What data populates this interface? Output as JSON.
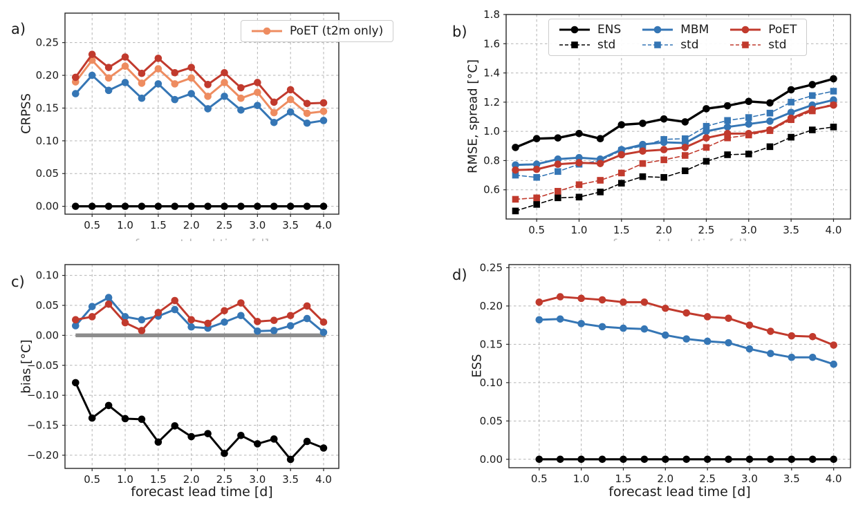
{
  "figure": {
    "background": "#ffffff",
    "grid_color": "#b3b3b3",
    "border_color": "#262626",
    "tick_color": "#262626"
  },
  "colors": {
    "ens": "#000000",
    "mbm": "#3576b5",
    "poet": "#c13a2d",
    "poet_t2m": "#ee8c60",
    "zero_line": "#8c8c8c"
  },
  "chart_data": [
    {
      "id": "a",
      "type": "line",
      "panel": "a)",
      "ylabel": "CRPSS",
      "xlabel_cropped": "forecast lead time [d]",
      "xlim": [
        0.09,
        4.23
      ],
      "ylim": [
        -0.012,
        0.295
      ],
      "grid": true,
      "xticks": [
        0.5,
        1.0,
        1.5,
        2.0,
        2.5,
        3.0,
        3.5,
        4.0
      ],
      "xtick_labels": [
        "0.5",
        "1.0",
        "1.5",
        "2.0",
        "2.5",
        "3.0",
        "3.5",
        "4.0"
      ],
      "yticks": [
        0.0,
        0.05,
        0.1,
        0.15,
        0.2,
        0.25
      ],
      "ytick_labels": [
        "0.00",
        "0.05",
        "0.10",
        "0.15",
        "0.20",
        "0.25"
      ],
      "x": [
        0.25,
        0.5,
        0.75,
        1.0,
        1.25,
        1.5,
        1.75,
        2.0,
        2.25,
        2.5,
        2.75,
        3.0,
        3.25,
        3.5,
        3.75,
        4.0
      ],
      "series": [
        {
          "name": "ENS",
          "color": "#000000",
          "marker": "circle",
          "dash": false,
          "width": 3.2,
          "values": [
            0,
            0,
            0,
            0,
            0,
            0,
            0,
            0,
            0,
            0,
            0,
            0,
            0,
            0,
            0,
            0
          ]
        },
        {
          "name": "MBM",
          "color": "#3576b5",
          "marker": "circle",
          "dash": false,
          "width": 3.0,
          "values": [
            0.172,
            0.2,
            0.177,
            0.189,
            0.165,
            0.187,
            0.163,
            0.172,
            0.149,
            0.168,
            0.147,
            0.154,
            0.128,
            0.144,
            0.127,
            0.131
          ]
        },
        {
          "name": "PoET (t2m only)",
          "color": "#ee8c60",
          "marker": "circle",
          "dash": false,
          "width": 3.0,
          "values": [
            0.19,
            0.223,
            0.196,
            0.214,
            0.188,
            0.21,
            0.187,
            0.196,
            0.168,
            0.189,
            0.165,
            0.174,
            0.143,
            0.163,
            0.142,
            0.145
          ]
        },
        {
          "name": "PoET",
          "color": "#c13a2d",
          "marker": "circle",
          "dash": false,
          "width": 3.0,
          "values": [
            0.197,
            0.232,
            0.212,
            0.228,
            0.203,
            0.226,
            0.204,
            0.212,
            0.186,
            0.204,
            0.181,
            0.189,
            0.159,
            0.178,
            0.157,
            0.158
          ]
        }
      ],
      "legend": {
        "entries": [
          {
            "label": "PoET (t2m only)",
            "color": "#ee8c60",
            "marker": "circle",
            "dash": false
          }
        ]
      }
    },
    {
      "id": "b",
      "type": "line",
      "panel": "b)",
      "ylabel": "RMSE, spread [°C]",
      "xlabel_cropped": "forecast lead time [d]",
      "xlim": [
        0.14,
        4.2
      ],
      "ylim": [
        0.4,
        1.8
      ],
      "grid": true,
      "xticks": [
        0.5,
        1.0,
        1.5,
        2.0,
        2.5,
        3.0,
        3.5,
        4.0
      ],
      "xtick_labels": [
        "0.5",
        "1.0",
        "1.5",
        "2.0",
        "2.5",
        "3.0",
        "3.5",
        "4.0"
      ],
      "yticks": [
        0.6,
        0.8,
        1.0,
        1.2,
        1.4,
        1.6,
        1.8
      ],
      "ytick_labels": [
        "0.6",
        "0.8",
        "1.0",
        "1.2",
        "1.4",
        "1.6",
        "1.8"
      ],
      "x": [
        0.25,
        0.5,
        0.75,
        1.0,
        1.25,
        1.5,
        1.75,
        2.0,
        2.25,
        2.5,
        2.75,
        3.0,
        3.25,
        3.5,
        3.75,
        4.0
      ],
      "series": [
        {
          "name": "ENS std",
          "color": "#000000",
          "marker": "square",
          "dash": true,
          "width": 1.6,
          "values": [
            0.455,
            0.5,
            0.545,
            0.55,
            0.585,
            0.645,
            0.69,
            0.685,
            0.73,
            0.795,
            0.84,
            0.845,
            0.895,
            0.96,
            1.01,
            1.03
          ]
        },
        {
          "name": "MBM std",
          "color": "#3576b5",
          "marker": "square",
          "dash": true,
          "width": 1.6,
          "values": [
            0.7,
            0.685,
            0.725,
            0.775,
            0.8,
            0.87,
            0.9,
            0.945,
            0.95,
            1.035,
            1.075,
            1.095,
            1.125,
            1.2,
            1.245,
            1.275
          ]
        },
        {
          "name": "PoET std",
          "color": "#c13a2d",
          "marker": "square",
          "dash": true,
          "width": 1.6,
          "values": [
            0.535,
            0.545,
            0.59,
            0.635,
            0.665,
            0.715,
            0.78,
            0.805,
            0.835,
            0.89,
            0.955,
            0.975,
            1.005,
            1.08,
            1.14,
            1.19
          ]
        },
        {
          "name": "MBM",
          "color": "#3576b5",
          "marker": "circle",
          "dash": false,
          "width": 3.0,
          "values": [
            0.77,
            0.775,
            0.81,
            0.82,
            0.81,
            0.875,
            0.91,
            0.925,
            0.92,
            1.0,
            1.03,
            1.05,
            1.07,
            1.13,
            1.18,
            1.215
          ]
        },
        {
          "name": "PoET",
          "color": "#c13a2d",
          "marker": "circle",
          "dash": false,
          "width": 3.0,
          "values": [
            0.735,
            0.74,
            0.775,
            0.785,
            0.78,
            0.84,
            0.865,
            0.875,
            0.89,
            0.955,
            0.985,
            0.985,
            1.01,
            1.09,
            1.15,
            1.18
          ]
        },
        {
          "name": "ENS",
          "color": "#000000",
          "marker": "circle",
          "dash": false,
          "width": 3.4,
          "values": [
            0.89,
            0.95,
            0.955,
            0.985,
            0.95,
            1.045,
            1.055,
            1.085,
            1.065,
            1.155,
            1.175,
            1.205,
            1.195,
            1.285,
            1.32,
            1.36
          ]
        }
      ],
      "legend": {
        "entries": [
          {
            "label": "ENS",
            "color": "#000000",
            "marker": "circle",
            "dash": false
          },
          {
            "label": "MBM",
            "color": "#3576b5",
            "marker": "circle",
            "dash": false
          },
          {
            "label": "PoET",
            "color": "#c13a2d",
            "marker": "circle",
            "dash": false
          },
          {
            "label": "std",
            "color": "#000000",
            "marker": "square",
            "dash": true
          },
          {
            "label": "std",
            "color": "#3576b5",
            "marker": "square",
            "dash": true
          },
          {
            "label": "std",
            "color": "#c13a2d",
            "marker": "square",
            "dash": true
          }
        ]
      }
    },
    {
      "id": "c",
      "type": "line",
      "panel": "c)",
      "ylabel": "bias [°C]",
      "xlabel": "forecast lead time [d]",
      "xlim": [
        0.09,
        4.23
      ],
      "ylim": [
        -0.222,
        0.118
      ],
      "grid": true,
      "xticks": [
        0.5,
        1.0,
        1.5,
        2.0,
        2.5,
        3.0,
        3.5,
        4.0
      ],
      "xtick_labels": [
        "0.5",
        "1.0",
        "1.5",
        "2.0",
        "2.5",
        "3.0",
        "3.5",
        "4.0"
      ],
      "yticks": [
        0.1,
        0.05,
        0.0,
        -0.05,
        -0.1,
        -0.15,
        -0.2
      ],
      "ytick_labels": [
        "0.10",
        "0.05",
        "0.00",
        "−0.05",
        "−0.10",
        "−0.15",
        "−0.20"
      ],
      "extras": [
        {
          "type": "hline",
          "y": 0.0,
          "x0": 0.25,
          "x1": 4.03,
          "color": "#8c8c8c",
          "width": 5.5
        }
      ],
      "x": [
        0.25,
        0.5,
        0.75,
        1.0,
        1.25,
        1.5,
        1.75,
        2.0,
        2.25,
        2.5,
        2.75,
        3.0,
        3.25,
        3.5,
        3.75,
        4.0
      ],
      "series": [
        {
          "name": "ENS",
          "color": "#000000",
          "marker": "circle",
          "dash": false,
          "width": 3.0,
          "values": [
            -0.079,
            -0.138,
            -0.117,
            -0.139,
            -0.14,
            -0.178,
            -0.151,
            -0.169,
            -0.164,
            -0.197,
            -0.167,
            -0.181,
            -0.173,
            -0.207,
            -0.177,
            -0.188
          ]
        },
        {
          "name": "MBM",
          "color": "#3576b5",
          "marker": "circle",
          "dash": false,
          "width": 3.0,
          "values": [
            0.016,
            0.048,
            0.063,
            0.031,
            0.026,
            0.032,
            0.043,
            0.014,
            0.012,
            0.022,
            0.033,
            0.007,
            0.008,
            0.016,
            0.028,
            0.005
          ]
        },
        {
          "name": "PoET",
          "color": "#c13a2d",
          "marker": "circle",
          "dash": false,
          "width": 3.0,
          "values": [
            0.026,
            0.031,
            0.052,
            0.021,
            0.008,
            0.038,
            0.058,
            0.026,
            0.02,
            0.041,
            0.054,
            0.023,
            0.025,
            0.033,
            0.049,
            0.022
          ]
        }
      ]
    },
    {
      "id": "d",
      "type": "line",
      "panel": "d)",
      "ylabel": "ESS",
      "xlabel": "forecast lead time [d]",
      "xlim": [
        0.14,
        4.2
      ],
      "ylim": [
        -0.011,
        0.254
      ],
      "grid": true,
      "xticks": [
        0.5,
        1.0,
        1.5,
        2.0,
        2.5,
        3.0,
        3.5,
        4.0
      ],
      "xtick_labels": [
        "0.5",
        "1.0",
        "1.5",
        "2.0",
        "2.5",
        "3.0",
        "3.5",
        "4.0"
      ],
      "yticks": [
        0.0,
        0.05,
        0.1,
        0.15,
        0.2,
        0.25
      ],
      "ytick_labels": [
        "0.00",
        "0.05",
        "0.10",
        "0.15",
        "0.20",
        "0.25"
      ],
      "x": [
        0.5,
        0.75,
        1.0,
        1.25,
        1.5,
        1.75,
        2.0,
        2.25,
        2.5,
        2.75,
        3.0,
        3.25,
        3.5,
        3.75,
        4.0
      ],
      "series": [
        {
          "name": "ENS",
          "color": "#000000",
          "marker": "circle",
          "dash": false,
          "width": 3.2,
          "values": [
            0,
            0,
            0,
            0,
            0,
            0,
            0,
            0,
            0,
            0,
            0,
            0,
            0,
            0,
            0
          ]
        },
        {
          "name": "MBM",
          "color": "#3576b5",
          "marker": "circle",
          "dash": false,
          "width": 3.0,
          "values": [
            0.182,
            0.183,
            0.177,
            0.173,
            0.171,
            0.17,
            0.162,
            0.157,
            0.154,
            0.152,
            0.144,
            0.138,
            0.133,
            0.133,
            0.124
          ]
        },
        {
          "name": "PoET",
          "color": "#c13a2d",
          "marker": "circle",
          "dash": false,
          "width": 3.0,
          "values": [
            0.205,
            0.212,
            0.21,
            0.208,
            0.205,
            0.205,
            0.197,
            0.191,
            0.186,
            0.184,
            0.175,
            0.167,
            0.161,
            0.16,
            0.149
          ]
        }
      ]
    }
  ]
}
